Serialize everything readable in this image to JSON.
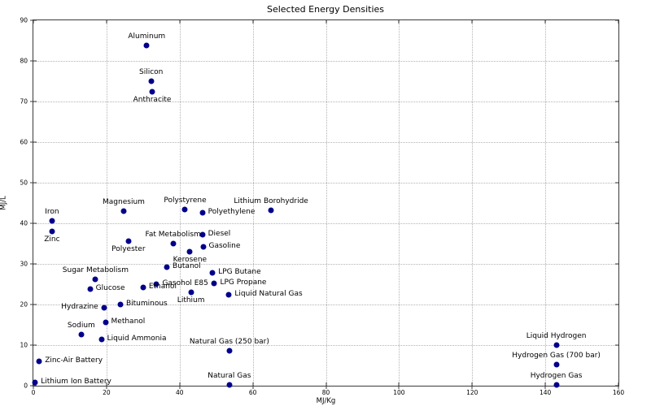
{
  "title": "Selected Energy Densities",
  "colors": {
    "marker": "#00008b",
    "grid": "#b3b3b3",
    "axis": "#3a3a3a",
    "background": "#ffffff",
    "text": "#000000"
  },
  "chart_data": {
    "type": "scatter",
    "title": "Selected Energy Densities",
    "xlabel": "MJ/Kg",
    "ylabel": "MJ/L",
    "xlim": [
      0,
      160
    ],
    "ylim": [
      0,
      90
    ],
    "xticks": [
      0,
      20,
      40,
      60,
      80,
      100,
      120,
      140,
      160
    ],
    "yticks": [
      0,
      10,
      20,
      30,
      40,
      50,
      60,
      70,
      80,
      90
    ],
    "grid": "dotted",
    "legend": "none",
    "marker_color": "#00008b",
    "points": [
      {
        "label": "Aluminum",
        "x": 31.0,
        "y": 83.8,
        "label_pos": "above"
      },
      {
        "label": "Silicon",
        "x": 32.2,
        "y": 75.1,
        "label_pos": "above"
      },
      {
        "label": "Anthracite",
        "x": 32.5,
        "y": 72.4,
        "label_pos": "below"
      },
      {
        "label": "Magnesium",
        "x": 24.7,
        "y": 43.0,
        "label_pos": "above"
      },
      {
        "label": "Iron",
        "x": 5.1,
        "y": 40.7,
        "label_pos": "above"
      },
      {
        "label": "Zinc",
        "x": 5.1,
        "y": 38.0,
        "label_pos": "below"
      },
      {
        "label": "Polystyrene",
        "x": 41.5,
        "y": 43.5,
        "label_pos": "above"
      },
      {
        "label": "Polyethylene",
        "x": 46.2,
        "y": 42.6,
        "label_pos": "right"
      },
      {
        "label": "Lithium Borohydride",
        "x": 65.0,
        "y": 43.2,
        "label_pos": "above"
      },
      {
        "label": "Polyester",
        "x": 26.0,
        "y": 35.6,
        "label_pos": "below"
      },
      {
        "label": "Fat Metabolism",
        "x": 38.2,
        "y": 35.0,
        "label_pos": "above"
      },
      {
        "label": "Diesel",
        "x": 46.2,
        "y": 37.3,
        "label_pos": "right"
      },
      {
        "label": "Gasoline",
        "x": 46.4,
        "y": 34.2,
        "label_pos": "right"
      },
      {
        "label": "Kerosene",
        "x": 42.8,
        "y": 33.0,
        "label_pos": "below"
      },
      {
        "label": "Butanol",
        "x": 36.5,
        "y": 29.2,
        "label_pos": "right"
      },
      {
        "label": "Sugar Metabolism",
        "x": 17.0,
        "y": 26.2,
        "label_pos": "above"
      },
      {
        "label": "Glucose",
        "x": 15.5,
        "y": 23.8,
        "label_pos": "right"
      },
      {
        "label": "Gasohol E85",
        "x": 33.7,
        "y": 25.1,
        "label_pos": "right"
      },
      {
        "label": "Ethanol",
        "x": 30.0,
        "y": 24.3,
        "label_pos": "right"
      },
      {
        "label": "LPG Butane",
        "x": 49.0,
        "y": 27.8,
        "label_pos": "right"
      },
      {
        "label": "LPG Propane",
        "x": 49.5,
        "y": 25.2,
        "label_pos": "right"
      },
      {
        "label": "Lithium",
        "x": 43.1,
        "y": 23.0,
        "label_pos": "below"
      },
      {
        "label": "Liquid Natural Gas",
        "x": 53.5,
        "y": 22.4,
        "label_pos": "right"
      },
      {
        "label": "Hydrazine",
        "x": 19.3,
        "y": 19.3,
        "label_pos": "left"
      },
      {
        "label": "Bituminous",
        "x": 23.8,
        "y": 20.0,
        "label_pos": "right"
      },
      {
        "label": "Methanol",
        "x": 19.7,
        "y": 15.6,
        "label_pos": "right"
      },
      {
        "label": "Sodium",
        "x": 13.1,
        "y": 12.6,
        "label_pos": "above"
      },
      {
        "label": "Liquid Ammonia",
        "x": 18.6,
        "y": 11.5,
        "label_pos": "right"
      },
      {
        "label": "Zinc-Air Battery",
        "x": 1.6,
        "y": 6.0,
        "label_pos": "right"
      },
      {
        "label": "Lithium Ion Battery",
        "x": 0.5,
        "y": 0.9,
        "label_pos": "right"
      },
      {
        "label": "Natural Gas (250 bar)",
        "x": 53.6,
        "y": 8.7,
        "label_pos": "above"
      },
      {
        "label": "Natural Gas",
        "x": 53.6,
        "y": 0.15,
        "label_pos": "above"
      },
      {
        "label": "Liquid Hydrogen",
        "x": 143.0,
        "y": 10.0,
        "label_pos": "above"
      },
      {
        "label": "Hydrogen Gas (700 bar)",
        "x": 143.0,
        "y": 5.3,
        "label_pos": "above"
      },
      {
        "label": "Hydrogen Gas",
        "x": 143.0,
        "y": 0.15,
        "label_pos": "above"
      }
    ]
  }
}
